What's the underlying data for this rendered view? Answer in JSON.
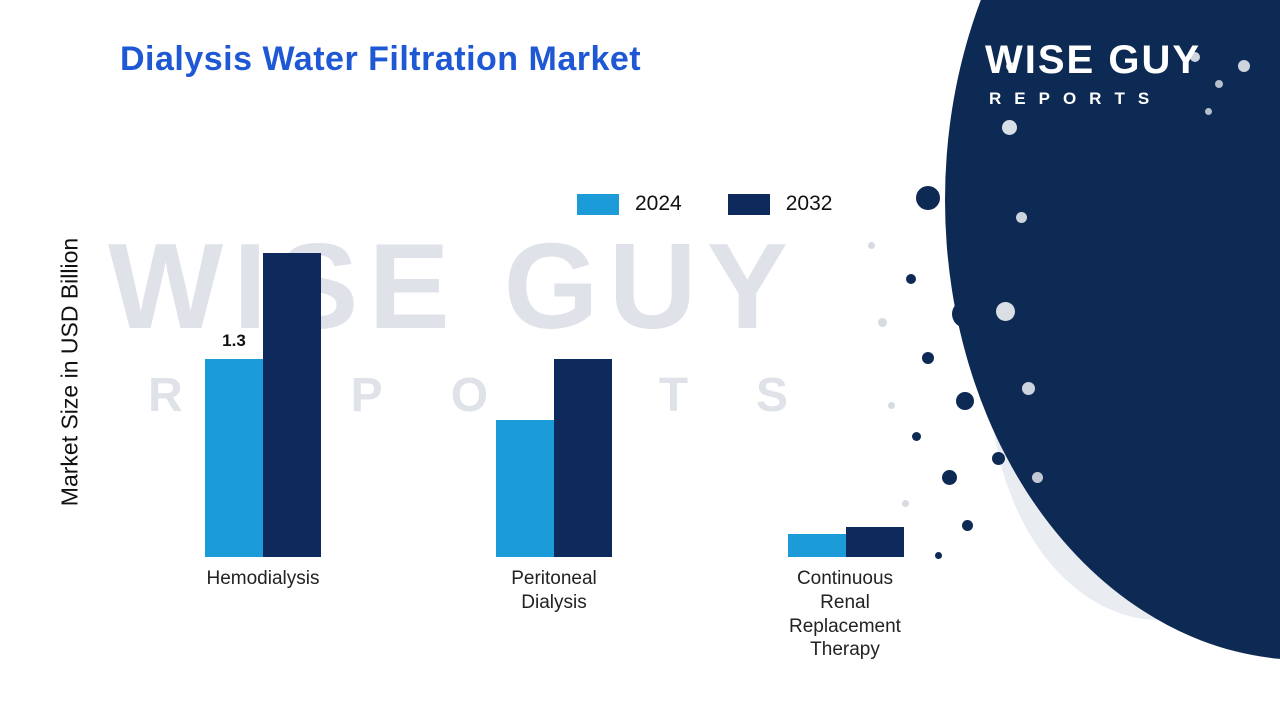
{
  "title": "Dialysis Water Filtration Market",
  "logo": {
    "line1": "WISE GUY",
    "line2": "REPORTS"
  },
  "watermark": {
    "line1": "WISE GUY",
    "line2": "REPORTS"
  },
  "colors": {
    "title": "#1f58d4",
    "bar_2024": "#1b9bd8",
    "bar_2032": "#0e2a5c",
    "corner_decor": "#0d2a55"
  },
  "legend": [
    {
      "label": "2024",
      "color": "#1b9bd8"
    },
    {
      "label": "2032",
      "color": "#0e2a5c"
    }
  ],
  "chart_data": {
    "type": "bar",
    "title": "Dialysis Water Filtration Market",
    "xlabel": "",
    "ylabel": "Market Size in USD Billion",
    "categories": [
      "Hemodialysis",
      "Peritoneal Dialysis",
      "Continuous Renal Replacement Therapy"
    ],
    "series": [
      {
        "name": "2024",
        "color": "#1b9bd8",
        "values": [
          1.3,
          0.9,
          0.15
        ]
      },
      {
        "name": "2032",
        "color": "#0e2a5c",
        "values": [
          2.0,
          1.3,
          0.2
        ]
      }
    ],
    "bar_labels": [
      {
        "series": "2024",
        "category": "Hemodialysis",
        "text": "1.3"
      }
    ],
    "ylim": [
      0,
      2.2
    ],
    "grid": false,
    "legend_position": "top-center"
  }
}
